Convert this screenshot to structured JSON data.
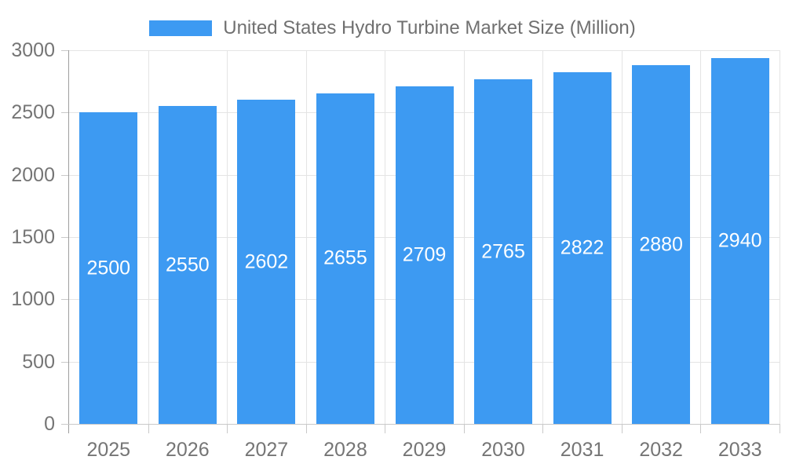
{
  "legend": {
    "label": "United States Hydro Turbine Market Size (Million)"
  },
  "chart_data": {
    "type": "bar",
    "title": "United States Hydro Turbine Market Size (Million)",
    "categories": [
      "2025",
      "2026",
      "2027",
      "2028",
      "2029",
      "2030",
      "2031",
      "2032",
      "2033"
    ],
    "values": [
      2500,
      2550,
      2602,
      2655,
      2709,
      2765,
      2822,
      2880,
      2940
    ],
    "series": [
      {
        "name": "United States Hydro Turbine Market Size (Million)",
        "values": [
          2500,
          2550,
          2602,
          2655,
          2709,
          2765,
          2822,
          2880,
          2940
        ]
      }
    ],
    "xlabel": "",
    "ylabel": "",
    "ylim": [
      0,
      3000
    ],
    "yticks": [
      0,
      500,
      1000,
      1500,
      2000,
      2500,
      3000
    ],
    "grid": true,
    "legend_position": "top",
    "value_labels": "centered-inside-bars"
  },
  "colors": {
    "bar": "#3d9af2",
    "value_label": "#ffffff",
    "axis_text": "#757575",
    "legend_text": "#707070",
    "gridline": "#e4e4e4",
    "tick": "#c9c9c9",
    "y_axis_line": "#9e9e9e",
    "background": "#ffffff"
  }
}
